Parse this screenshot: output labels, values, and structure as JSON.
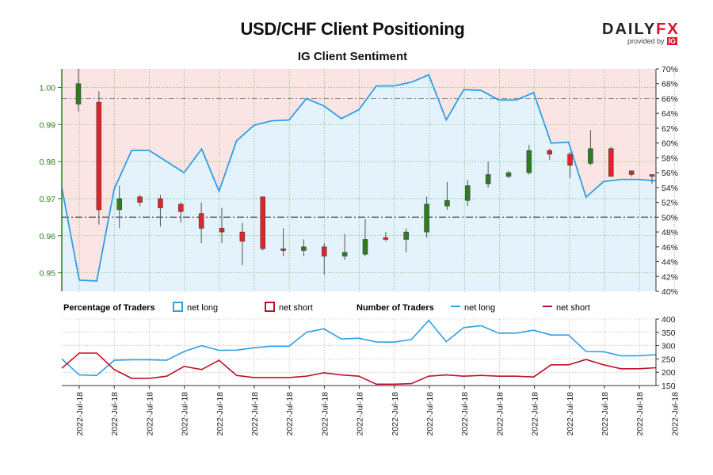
{
  "title": "USD/CHF Client Positioning",
  "subtitle": "IG Client Sentiment",
  "logo": {
    "brand_left": "DAILY",
    "brand_right": "FX",
    "provided_by": "provided by",
    "ig": "IG"
  },
  "colors": {
    "net_long": "#2e9fe8",
    "net_short": "#c0102b",
    "candle_up": "#2e7d1e",
    "candle_down": "#e0242c",
    "long_fill": "#e3f2fb",
    "short_fill": "#fbe4e4",
    "price_axis": "#2e7d1e"
  },
  "legend": {
    "pct_title": "Percentage of Traders",
    "pct_long": "net long",
    "pct_short": "net short",
    "num_title": "Number of Traders",
    "num_long": "net long",
    "num_short": "net short"
  },
  "chart_data": [
    {
      "type": "candlestick",
      "name": "price",
      "ylim": [
        0.945,
        1.005
      ],
      "yticks": [
        0.95,
        0.96,
        0.97,
        0.98,
        0.99,
        1.0
      ],
      "ytick_labels": [
        "0.95",
        "0.96",
        "0.97",
        "0.98",
        "0.99",
        "1.00"
      ],
      "reference_line": 0.965,
      "candles": [
        {
          "o": 0.9955,
          "h": 1.005,
          "l": 0.9935,
          "c": 1.001
        },
        {
          "o": 0.996,
          "h": 0.999,
          "l": 0.963,
          "c": 0.967
        },
        {
          "o": 0.967,
          "h": 0.9735,
          "l": 0.962,
          "c": 0.97
        },
        {
          "o": 0.9705,
          "h": 0.971,
          "l": 0.968,
          "c": 0.969
        },
        {
          "o": 0.97,
          "h": 0.971,
          "l": 0.9625,
          "c": 0.9675
        },
        {
          "o": 0.9685,
          "h": 0.969,
          "l": 0.9635,
          "c": 0.9665
        },
        {
          "o": 0.966,
          "h": 0.969,
          "l": 0.958,
          "c": 0.962
        },
        {
          "o": 0.962,
          "h": 0.9675,
          "l": 0.958,
          "c": 0.961
        },
        {
          "o": 0.961,
          "h": 0.9635,
          "l": 0.952,
          "c": 0.9585
        },
        {
          "o": 0.9705,
          "h": 0.9705,
          "l": 0.956,
          "c": 0.9565
        },
        {
          "o": 0.9565,
          "h": 0.962,
          "l": 0.9545,
          "c": 0.956
        },
        {
          "o": 0.956,
          "h": 0.959,
          "l": 0.9545,
          "c": 0.957
        },
        {
          "o": 0.957,
          "h": 0.958,
          "l": 0.9495,
          "c": 0.9545
        },
        {
          "o": 0.9545,
          "h": 0.9605,
          "l": 0.9535,
          "c": 0.9555
        },
        {
          "o": 0.955,
          "h": 0.9645,
          "l": 0.9545,
          "c": 0.959
        },
        {
          "o": 0.9595,
          "h": 0.961,
          "l": 0.9585,
          "c": 0.959
        },
        {
          "o": 0.959,
          "h": 0.962,
          "l": 0.9555,
          "c": 0.961
        },
        {
          "o": 0.961,
          "h": 0.9705,
          "l": 0.9595,
          "c": 0.9685
        },
        {
          "o": 0.968,
          "h": 0.9745,
          "l": 0.967,
          "c": 0.9695
        },
        {
          "o": 0.9695,
          "h": 0.975,
          "l": 0.968,
          "c": 0.9735
        },
        {
          "o": 0.974,
          "h": 0.98,
          "l": 0.973,
          "c": 0.9765
        },
        {
          "o": 0.976,
          "h": 0.9775,
          "l": 0.9755,
          "c": 0.977
        },
        {
          "o": 0.977,
          "h": 0.9845,
          "l": 0.9765,
          "c": 0.983
        },
        {
          "o": 0.983,
          "h": 0.9835,
          "l": 0.9805,
          "c": 0.982
        },
        {
          "o": 0.982,
          "h": 0.9825,
          "l": 0.9755,
          "c": 0.979
        },
        {
          "o": 0.9795,
          "h": 0.9885,
          "l": 0.979,
          "c": 0.9835
        },
        {
          "o": 0.9835,
          "h": 0.984,
          "l": 0.976,
          "c": 0.976
        },
        {
          "o": 0.9775,
          "h": 0.9775,
          "l": 0.976,
          "c": 0.9765
        },
        {
          "o": 0.9765,
          "h": 0.9765,
          "l": 0.974,
          "c": 0.976
        }
      ]
    },
    {
      "type": "line",
      "name": "net long %",
      "ylim": [
        40,
        70
      ],
      "yticks": [
        40,
        42,
        44,
        46,
        48,
        50,
        52,
        54,
        56,
        58,
        60,
        62,
        64,
        66,
        68,
        70
      ],
      "ytick_labels": [
        "40%",
        "42%",
        "44%",
        "46%",
        "48%",
        "50%",
        "52%",
        "54%",
        "56%",
        "58%",
        "60%",
        "62%",
        "64%",
        "66%",
        "68%",
        "70%"
      ],
      "reference_line": 50,
      "upper_reference_line": 66,
      "values": [
        54,
        41.5,
        41.4,
        53.8,
        59,
        59,
        57.5,
        56,
        59.2,
        53.5,
        60.3,
        62.4,
        63,
        63.1,
        66,
        65,
        63.3,
        64.5,
        67.7,
        67.7,
        68.2,
        69.2,
        63.1,
        67.2,
        67.1,
        65.8,
        65.8,
        66.8,
        60,
        60.1,
        52.7,
        54.8,
        55.1,
        55.1,
        54.9
      ]
    },
    {
      "type": "line",
      "name": "number of traders",
      "ylim": [
        150,
        400
      ],
      "yticks": [
        150,
        200,
        250,
        300,
        350,
        400
      ],
      "ytick_labels": [
        "150",
        "200",
        "250",
        "300",
        "350",
        "400"
      ],
      "series": [
        {
          "name": "net long",
          "values": [
            250,
            190,
            188,
            245,
            247,
            247,
            245,
            278,
            300,
            282,
            283,
            292,
            298,
            298,
            350,
            363,
            325,
            328,
            314,
            313,
            323,
            395,
            315,
            368,
            375,
            347,
            347,
            358,
            340,
            340,
            278,
            277,
            262,
            262,
            266
          ]
        },
        {
          "name": "net short",
          "values": [
            215,
            272,
            272,
            210,
            177,
            177,
            185,
            222,
            210,
            245,
            188,
            180,
            180,
            180,
            185,
            198,
            190,
            185,
            155,
            155,
            157,
            185,
            190,
            185,
            188,
            185,
            185,
            182,
            228,
            228,
            248,
            228,
            213,
            213,
            217
          ]
        }
      ]
    }
  ],
  "x_axis": {
    "labels": [
      "2022-Jul-18",
      "2022-Jul-18",
      "2022-Jul-18",
      "2022-Jul-18",
      "2022-Jul-18",
      "2022-Jul-18",
      "2022-Jul-18",
      "2022-Jul-18",
      "2022-Jul-18",
      "2022-Jul-18",
      "2022-Jul-18",
      "2022-Jul-18",
      "2022-Jul-18",
      "2022-Jul-18",
      "2022-Jul-18",
      "2022-Jul-18",
      "2022-Jul-18",
      "2022-Jul-18"
    ]
  }
}
